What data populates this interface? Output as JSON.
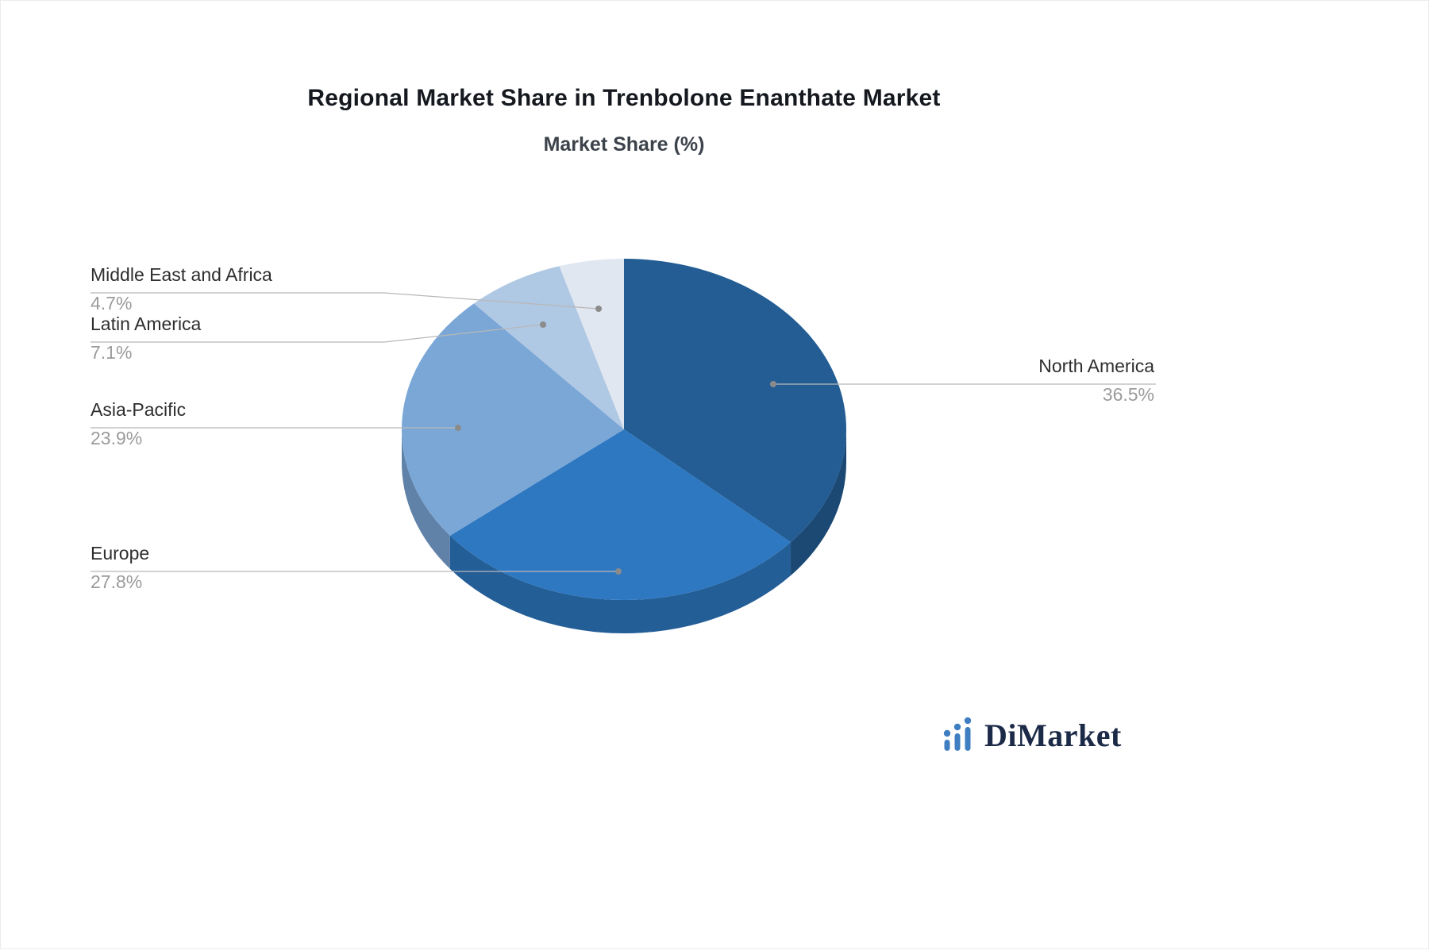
{
  "chart_data": {
    "type": "pie",
    "style": "3d",
    "title": "Regional Market Share in Trenbolone Enanthate Market",
    "subtitle": "Market Share (%)",
    "unit": "%",
    "start_angle_deg": 0,
    "direction": "clockwise",
    "legend": "none",
    "slices": [
      {
        "label": "North America",
        "value": 36.5,
        "display": "36.5%",
        "color": "#235d94"
      },
      {
        "label": "Europe",
        "value": 27.8,
        "display": "27.8%",
        "color": "#2e78c2"
      },
      {
        "label": "Asia-Pacific",
        "value": 23.9,
        "display": "23.9%",
        "color": "#7ba7d7"
      },
      {
        "label": "Latin America",
        "value": 7.1,
        "display": "7.1%",
        "color": "#afc8e4"
      },
      {
        "label": "Middle East and Africa",
        "value": 4.7,
        "display": "4.7%",
        "color": "#e1e7f0"
      }
    ],
    "callout_line_color": "#b8b8b8",
    "callout_dot_color": "#8b8b8b"
  },
  "branding": {
    "logo_text": "DiMarket",
    "logo_color": "#1b2a47",
    "icon_color": "#3f7fc1"
  }
}
